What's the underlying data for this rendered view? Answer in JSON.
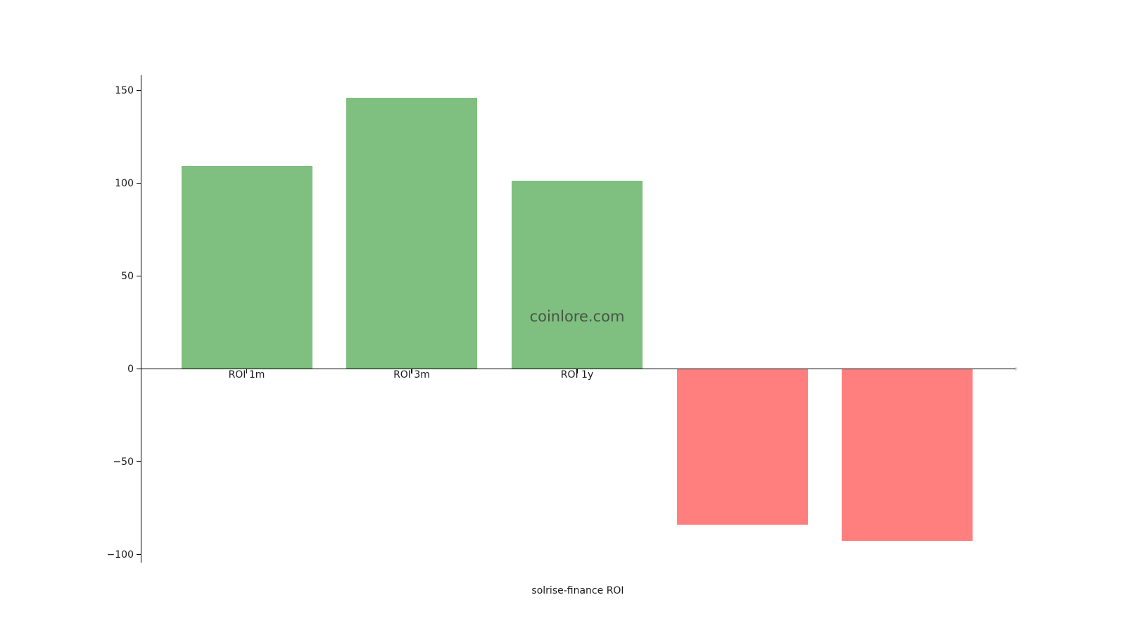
{
  "figure": {
    "watermark": "coinlore.com",
    "xlabel": "solrise-finance ROI"
  },
  "chart_data": {
    "type": "bar",
    "title": "",
    "xlabel": "solrise-finance ROI",
    "ylabel": "",
    "categories": [
      "ROI 1m",
      "ROI 3m",
      "ROI 1y",
      "",
      ""
    ],
    "values": [
      109.4,
      146.2,
      101.5,
      -84,
      -92.5
    ],
    "bar_colors": [
      "#7fbf7f",
      "#7fbf7f",
      "#7fbf7f",
      "#ff7f7f",
      "#ff7f7f"
    ],
    "positive_color": "#7fbf7f",
    "negative_color": "#ff7f7f",
    "yticks": [
      150,
      100,
      50,
      0,
      -50,
      -100
    ],
    "ytick_labels": [
      "150",
      "100",
      "50",
      "0",
      "−50",
      "−100"
    ],
    "ylim": [
      -104.4,
      158.1
    ],
    "grid": false,
    "legend": false,
    "annotations": [
      "coinlore.com"
    ]
  }
}
